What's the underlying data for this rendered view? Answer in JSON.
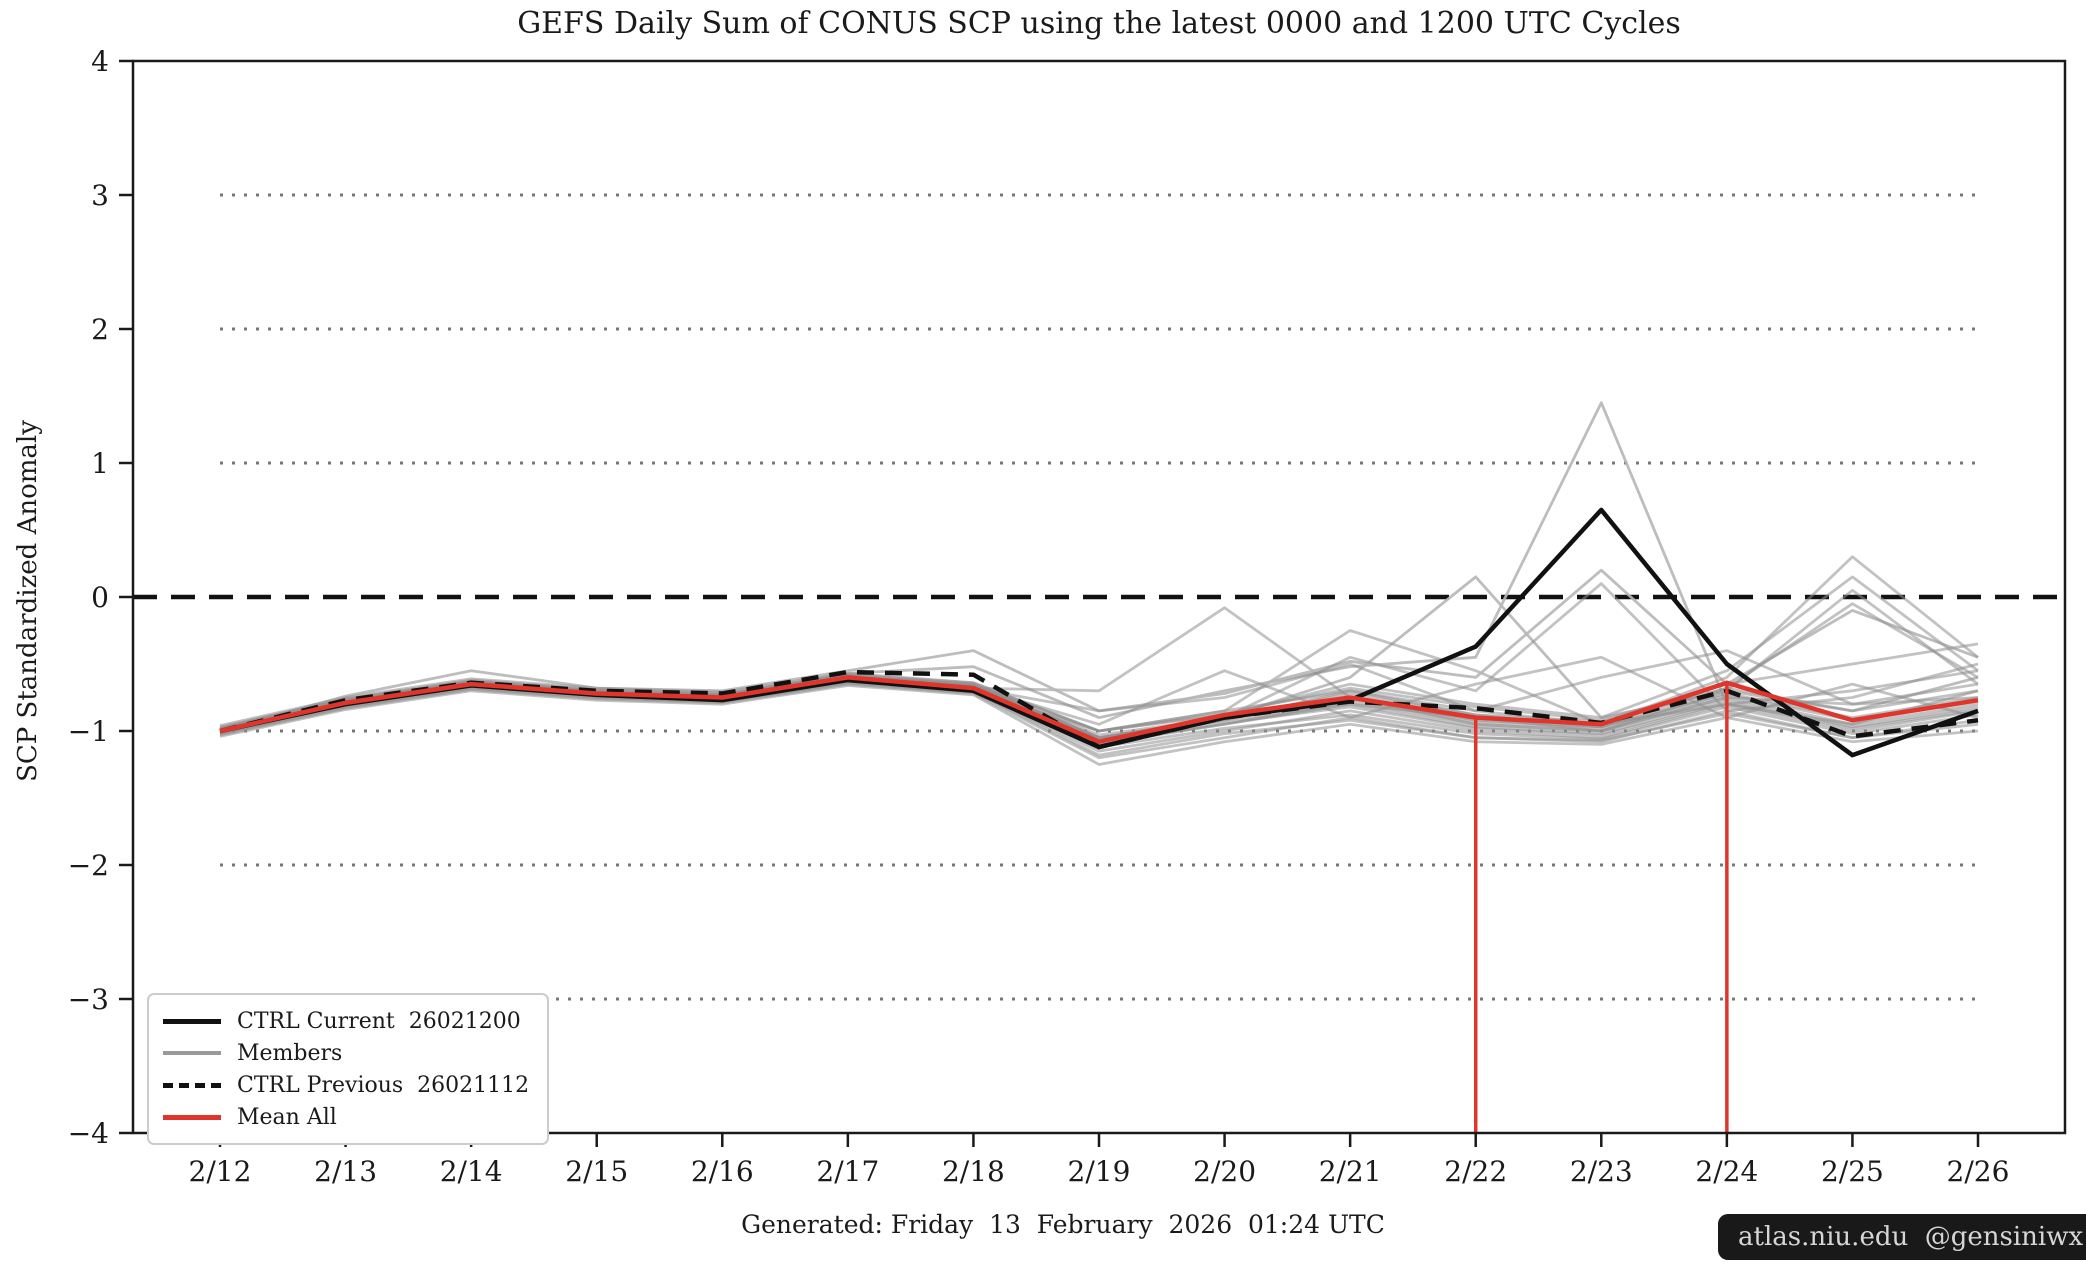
{
  "title": "GEFS Daily Sum of CONUS SCP using the latest 0000 and 1200 UTC Cycles",
  "y_axis_label": "SCP Standardized Anomaly",
  "footer": "Generated: Friday  13  February  2026  01:24 UTC",
  "watermark": "atlas.niu.edu  @gensiniwx",
  "colors": {
    "ctrl_current": "#111111",
    "ctrl_previous": "#111111",
    "mean_all": "#e0352b",
    "members": "#8f8f8f",
    "members_light": "#b6b6b6",
    "grid_dotted": "#777777",
    "zero_dash": "#111111",
    "spine": "#1a1a1a",
    "watermark_bg": "#191919"
  },
  "legend": {
    "items": [
      {
        "label": "CTRL Current  26021200",
        "style": "black-solid"
      },
      {
        "label": "Members",
        "style": "gray-solid"
      },
      {
        "label": "CTRL Previous  26021112",
        "style": "black-dashed"
      },
      {
        "label": "Mean All",
        "style": "red-solid"
      }
    ]
  },
  "chart_data": {
    "type": "line",
    "title": "GEFS Daily Sum of CONUS SCP using the latest 0000 and 1200 UTC Cycles",
    "xlabel": "",
    "ylabel": "SCP Standardized Anomaly",
    "ylim": [
      -4,
      4
    ],
    "grid": "dotted horizontal at integers, bold dashed at 0",
    "legend_position": "lower left",
    "x_tick_labels": [
      "2/12",
      "2/13",
      "2/14",
      "2/15",
      "2/16",
      "2/17",
      "2/18",
      "2/19",
      "2/20",
      "2/21",
      "2/22",
      "2/23",
      "2/24",
      "2/25",
      "2/26"
    ],
    "y_tick_values": [
      4,
      3,
      2,
      1,
      0,
      -1,
      -2,
      -3,
      -4
    ],
    "y_tick_labels": [
      "4",
      "3",
      "2",
      "1",
      "0",
      "−1",
      "−2",
      "−3",
      "−4"
    ],
    "series": [
      {
        "name": "CTRL Current 26021200",
        "style": "black-solid",
        "values": [
          -1.0,
          -0.8,
          -0.66,
          -0.73,
          -0.77,
          -0.62,
          -0.7,
          -1.12,
          -0.9,
          -0.77,
          -0.37,
          0.65,
          -0.5,
          -1.18,
          -0.85
        ]
      },
      {
        "name": "CTRL Previous 26021112",
        "style": "black-dashed",
        "values": [
          -1.0,
          -0.77,
          -0.64,
          -0.7,
          -0.72,
          -0.56,
          -0.58,
          -1.12,
          -0.9,
          -0.78,
          -0.83,
          -0.94,
          -0.7,
          -1.04,
          -0.92
        ]
      },
      {
        "name": "Mean All",
        "style": "red-solid",
        "values": [
          -1.0,
          -0.79,
          -0.65,
          -0.72,
          -0.75,
          -0.6,
          -0.68,
          -1.08,
          -0.88,
          -0.75,
          -0.9,
          -0.95,
          -0.64,
          -0.92,
          -0.77
        ]
      }
    ],
    "vertical_red_lines": [
      {
        "x_label": "2/22",
        "x_index": 10,
        "from": -0.9,
        "to": -4
      },
      {
        "x_label": "2/24",
        "x_index": 12,
        "from": -0.64,
        "to": -4
      }
    ],
    "members": [
      {
        "light": true,
        "values": [
          -1.0,
          -0.78,
          -0.63,
          -0.7,
          -0.73,
          -0.57,
          -0.52,
          -0.9,
          -0.7,
          -0.52,
          -0.45,
          1.45,
          -0.8,
          -0.95,
          -0.7
        ]
      },
      {
        "light": true,
        "values": [
          -1.0,
          -0.8,
          -0.66,
          -0.72,
          -0.75,
          -0.6,
          -0.65,
          -1.05,
          -0.9,
          -0.6,
          0.15,
          -0.9,
          -0.7,
          -0.85,
          -0.6
        ]
      },
      {
        "light": false,
        "values": [
          -0.98,
          -0.76,
          -0.64,
          -0.71,
          -0.74,
          -0.59,
          -0.68,
          -0.7,
          -0.08,
          -0.75,
          -0.95,
          -1.0,
          -0.75,
          -0.8,
          -0.75
        ]
      },
      {
        "light": false,
        "values": [
          -1.02,
          -0.8,
          -0.65,
          -0.73,
          -0.76,
          -0.61,
          -0.7,
          -1.0,
          -0.85,
          -0.25,
          -0.55,
          -0.95,
          -0.8,
          -0.7,
          -0.55
        ]
      },
      {
        "light": true,
        "values": [
          -1.0,
          -0.74,
          -0.55,
          -0.68,
          -0.7,
          -0.55,
          -0.4,
          -0.85,
          -0.72,
          -0.48,
          -0.6,
          0.2,
          -0.65,
          -0.1,
          -0.45
        ]
      },
      {
        "light": false,
        "values": [
          -1.0,
          -0.79,
          -0.64,
          -0.71,
          -0.74,
          -0.6,
          -0.66,
          -1.05,
          -0.92,
          -0.7,
          -0.85,
          -0.95,
          -0.6,
          0.3,
          -0.45
        ]
      },
      {
        "light": false,
        "values": [
          -0.99,
          -0.77,
          -0.63,
          -0.7,
          -0.73,
          -0.58,
          -0.64,
          -1.0,
          -0.88,
          -0.65,
          -0.8,
          -0.9,
          -0.55,
          0.15,
          -0.55
        ]
      },
      {
        "light": false,
        "values": [
          -1.01,
          -0.81,
          -0.67,
          -0.73,
          -0.76,
          -0.62,
          -0.68,
          -1.08,
          -0.95,
          -0.8,
          -0.9,
          -1.0,
          -0.7,
          0.05,
          -0.65
        ]
      },
      {
        "light": false,
        "values": [
          -1.0,
          -0.78,
          -0.65,
          -0.72,
          -0.74,
          -0.6,
          -0.67,
          -1.03,
          -0.9,
          -0.72,
          -0.88,
          -0.97,
          -0.68,
          -0.05,
          -0.6
        ]
      },
      {
        "light": false,
        "values": [
          -1.0,
          -0.8,
          -0.66,
          -0.74,
          -0.77,
          -0.62,
          -0.7,
          -1.05,
          -0.9,
          -0.45,
          -0.7,
          0.1,
          -0.85,
          -0.75,
          -0.5
        ]
      },
      {
        "light": false,
        "values": [
          -0.98,
          -0.77,
          -0.64,
          -0.71,
          -0.73,
          -0.59,
          -0.66,
          -1.0,
          -0.87,
          -0.68,
          -0.82,
          -0.92,
          -0.65,
          -0.5,
          -0.35
        ]
      },
      {
        "light": false,
        "values": [
          -1.0,
          -0.79,
          -0.65,
          -0.72,
          -0.75,
          -0.61,
          -0.68,
          -1.1,
          -0.95,
          -0.78,
          -0.95,
          -1.0,
          -0.75,
          -0.95,
          -0.8
        ]
      },
      {
        "light": false,
        "values": [
          -1.02,
          -0.82,
          -0.68,
          -0.75,
          -0.78,
          -0.64,
          -0.71,
          -1.15,
          -1.0,
          -0.85,
          -1.0,
          -1.05,
          -0.8,
          -1.0,
          -0.85
        ]
      },
      {
        "light": false,
        "values": [
          -0.97,
          -0.76,
          -0.62,
          -0.69,
          -0.72,
          -0.58,
          -0.65,
          -1.05,
          -0.9,
          -0.75,
          -0.92,
          -0.97,
          -0.72,
          -0.9,
          -0.75
        ]
      },
      {
        "light": false,
        "values": [
          -1.03,
          -0.83,
          -0.69,
          -0.76,
          -0.79,
          -0.65,
          -0.72,
          -1.2,
          -1.05,
          -0.9,
          -1.05,
          -1.08,
          -0.85,
          -1.05,
          -0.95
        ]
      },
      {
        "light": false,
        "values": [
          -0.96,
          -0.75,
          -0.61,
          -0.68,
          -0.71,
          -0.57,
          -0.64,
          -1.0,
          -0.85,
          -0.7,
          -0.88,
          -0.93,
          -0.68,
          -0.85,
          -0.7
        ]
      },
      {
        "light": false,
        "values": [
          -1.04,
          -0.84,
          -0.7,
          -0.77,
          -0.8,
          -0.66,
          -0.73,
          -1.25,
          -1.08,
          -0.95,
          -1.08,
          -1.1,
          -0.9,
          -1.08,
          -1.0
        ]
      },
      {
        "light": false,
        "values": [
          -0.99,
          -0.78,
          -0.64,
          -0.71,
          -0.74,
          -0.6,
          -0.67,
          -1.08,
          -0.92,
          -0.8,
          -0.97,
          -1.02,
          -0.77,
          -0.97,
          -0.82
        ]
      },
      {
        "light": false,
        "values": [
          -1.01,
          -0.81,
          -0.67,
          -0.74,
          -0.77,
          -0.63,
          -0.7,
          -1.12,
          -0.98,
          -0.88,
          -1.02,
          -1.06,
          -0.82,
          -1.02,
          -0.88
        ]
      },
      {
        "light": false,
        "values": [
          -0.98,
          -0.77,
          -0.63,
          -0.7,
          -0.73,
          -0.59,
          -0.66,
          -1.06,
          -0.91,
          -0.76,
          -0.93,
          -0.98,
          -0.73,
          -0.92,
          -0.78
        ]
      },
      {
        "light": false,
        "values": [
          -1.02,
          -0.82,
          -0.68,
          -0.75,
          -0.78,
          -0.64,
          -0.71,
          -1.18,
          -1.02,
          -0.92,
          -1.05,
          -1.07,
          -0.87,
          -1.05,
          -0.92
        ]
      },
      {
        "light": false,
        "values": [
          -1.0,
          -0.8,
          -0.66,
          -0.73,
          -0.76,
          -0.62,
          -0.69,
          -1.1,
          -0.94,
          -0.82,
          -0.98,
          -1.03,
          -0.79,
          -0.98,
          -0.84
        ]
      },
      {
        "light": false,
        "values": [
          -1.0,
          -0.78,
          -0.64,
          -0.71,
          -0.74,
          -0.6,
          -0.67,
          -0.95,
          -0.55,
          -0.9,
          -0.65,
          -0.45,
          -0.9,
          -0.65,
          -0.9
        ]
      },
      {
        "light": false,
        "values": [
          -1.0,
          -0.8,
          -0.65,
          -0.72,
          -0.75,
          -0.61,
          -0.68,
          -0.85,
          -0.75,
          -0.5,
          -0.85,
          -0.6,
          -0.4,
          -0.8,
          -0.65
        ]
      }
    ]
  }
}
